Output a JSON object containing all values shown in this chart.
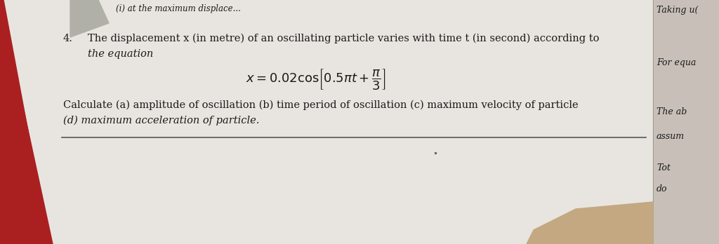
{
  "page_color": "#e8e5e0",
  "left_bar_color": "#aa2020",
  "right_page_color": "#c8c0b8",
  "right_bar_color": "#d0c8c0",
  "top_text": "(i) at the maximum displace...",
  "question_number": "4.",
  "question_text": "The displacement x (in metre) of an oscillating particle varies with time t (in second) according to",
  "question_text2": "the equation",
  "calculate_text": "Calculate (a) amplitude of oscillation (b) time period of oscillation (c) maximum velocity of particle",
  "calculate_text2": "(d) maximum acceleration of particle.",
  "right_col_text1": "Taking u(",
  "right_col_text2": "For equa",
  "right_col_text3": "The ab",
  "right_col_text4": "assum",
  "right_col_text5": "Tot",
  "right_col_text6": "do",
  "line_color": "#555555",
  "text_color": "#1a1a1a",
  "font_size_main": 10.5,
  "font_size_eq": 13,
  "font_size_right": 9
}
